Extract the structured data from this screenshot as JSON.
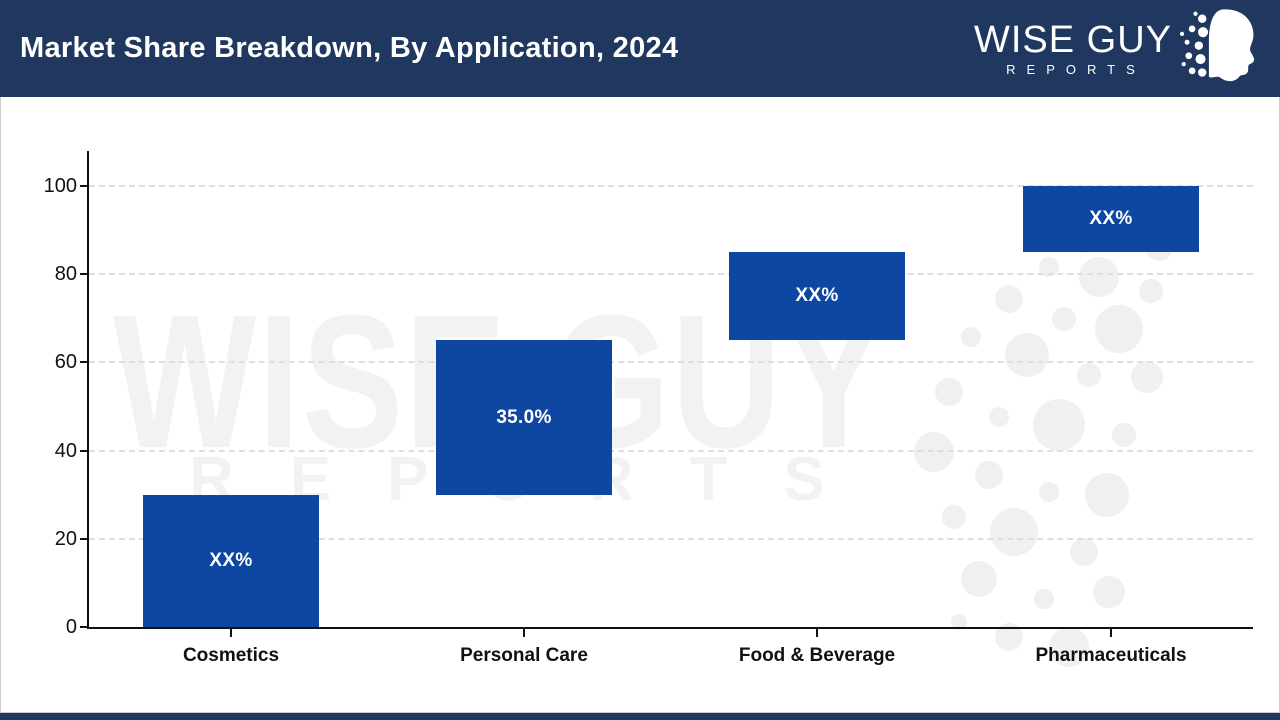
{
  "header": {
    "title": "Market Share Breakdown, By Application, 2024",
    "bg_color": "#20375f",
    "logo": {
      "line1": "WISE GUY",
      "line2": "REPORTS"
    }
  },
  "watermark": {
    "line1": "WISE GUY",
    "line2": "REPORTS"
  },
  "chart_data": {
    "type": "bar",
    "variant": "floating-waterfall",
    "title": "Market Share Breakdown, By Application, 2024",
    "categories": [
      "Cosmetics",
      "Personal Care",
      "Food & Beverage",
      "Pharmaceuticals"
    ],
    "segments": [
      {
        "category": "Cosmetics",
        "start": 0,
        "end": 30,
        "label": "XX%"
      },
      {
        "category": "Personal Care",
        "start": 30,
        "end": 65,
        "label": "35.0%"
      },
      {
        "category": "Food & Beverage",
        "start": 65,
        "end": 85,
        "label": "XX%"
      },
      {
        "category": "Pharmaceuticals",
        "start": 85,
        "end": 100,
        "label": "XX%"
      }
    ],
    "values_pct": [
      30,
      35,
      20,
      15
    ],
    "yticks": [
      0,
      20,
      40,
      60,
      80,
      100
    ],
    "ylim": [
      0,
      108
    ],
    "xlabel": "",
    "ylabel": "",
    "grid": "horizontal-dashed",
    "legend": "none",
    "bar_color": "#0d47a1",
    "bar_label_color": "#ffffff",
    "axis_color": "#111111",
    "gridline_color": "#dedede"
  }
}
